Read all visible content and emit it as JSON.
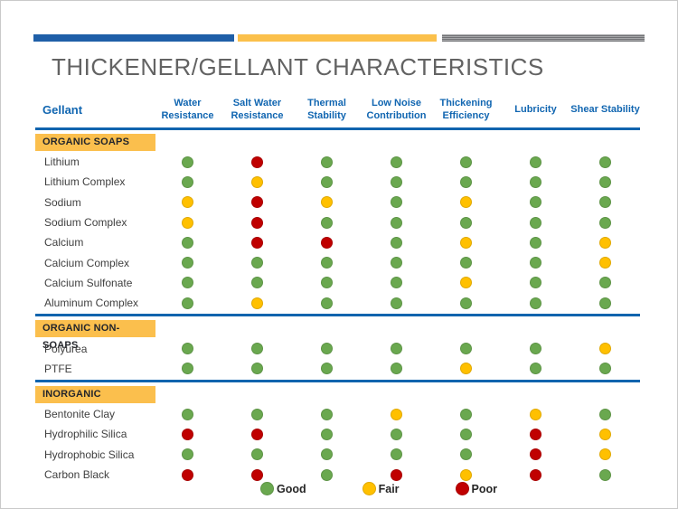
{
  "title": "THICKENER/GELLANT CHARACTERISTICS",
  "top_bars": [
    {
      "name": "blue-accent-bar",
      "color": "#1F5FA8"
    },
    {
      "name": "yellow-accent-bar",
      "color": "#FBC04B"
    },
    {
      "name": "gray-accent-bar",
      "color": "#77787B"
    }
  ],
  "colors": {
    "good": "#6AA84F",
    "fair": "#FFC000",
    "poor": "#C00000",
    "header_blue": "#1166B1",
    "rule_blue": "#1064AE",
    "section_bg": "#FBBF4D",
    "section_text": "#23252B",
    "title_gray": "#636363",
    "label_gray": "#3F3F3F"
  },
  "chart_data": {
    "type": "table",
    "title": "THICKENER/GELLANT CHARACTERISTICS",
    "row_header": "Gellant",
    "columns": [
      "Water Resistance",
      "Salt Water Resistance",
      "Thermal Stability",
      "Low Noise Contribution",
      "Thickening Efficiency",
      "Lubricity",
      "Shear Stability"
    ],
    "rating_scale": [
      "good",
      "fair",
      "poor"
    ],
    "sections": [
      {
        "name": "ORGANIC SOAPS",
        "rows": [
          {
            "label": "Lithium",
            "ratings": [
              "good",
              "poor",
              "good",
              "good",
              "good",
              "good",
              "good"
            ]
          },
          {
            "label": "Lithium Complex",
            "ratings": [
              "good",
              "fair",
              "good",
              "good",
              "good",
              "good",
              "good"
            ]
          },
          {
            "label": "Sodium",
            "ratings": [
              "fair",
              "poor",
              "fair",
              "good",
              "fair",
              "good",
              "good"
            ]
          },
          {
            "label": "Sodium Complex",
            "ratings": [
              "fair",
              "poor",
              "good",
              "good",
              "good",
              "good",
              "good"
            ]
          },
          {
            "label": "Calcium",
            "ratings": [
              "good",
              "poor",
              "poor",
              "good",
              "fair",
              "good",
              "fair"
            ]
          },
          {
            "label": "Calcium Complex",
            "ratings": [
              "good",
              "good",
              "good",
              "good",
              "good",
              "good",
              "fair"
            ]
          },
          {
            "label": "Calcium Sulfonate",
            "ratings": [
              "good",
              "good",
              "good",
              "good",
              "fair",
              "good",
              "good"
            ]
          },
          {
            "label": "Aluminum Complex",
            "ratings": [
              "good",
              "fair",
              "good",
              "good",
              "good",
              "good",
              "good"
            ]
          }
        ]
      },
      {
        "name": "ORGANIC NON-SOAPS",
        "rows": [
          {
            "label": "Polyurea",
            "ratings": [
              "good",
              "good",
              "good",
              "good",
              "good",
              "good",
              "fair"
            ]
          },
          {
            "label": "PTFE",
            "ratings": [
              "good",
              "good",
              "good",
              "good",
              "fair",
              "good",
              "good"
            ]
          }
        ]
      },
      {
        "name": "INORGANIC",
        "rows": [
          {
            "label": "Bentonite Clay",
            "ratings": [
              "good",
              "good",
              "good",
              "fair",
              "good",
              "fair",
              "good"
            ]
          },
          {
            "label": "Hydrophilic Silica",
            "ratings": [
              "poor",
              "poor",
              "good",
              "good",
              "good",
              "poor",
              "fair"
            ]
          },
          {
            "label": "Hydrophobic Silica",
            "ratings": [
              "good",
              "good",
              "good",
              "good",
              "good",
              "poor",
              "fair"
            ]
          },
          {
            "label": "Carbon Black",
            "ratings": [
              "poor",
              "poor",
              "good",
              "poor",
              "fair",
              "poor",
              "good"
            ]
          }
        ]
      }
    ],
    "legend": [
      {
        "label": "Good",
        "value": "good"
      },
      {
        "label": "Fair",
        "value": "fair"
      },
      {
        "label": "Poor",
        "value": "poor"
      }
    ]
  }
}
